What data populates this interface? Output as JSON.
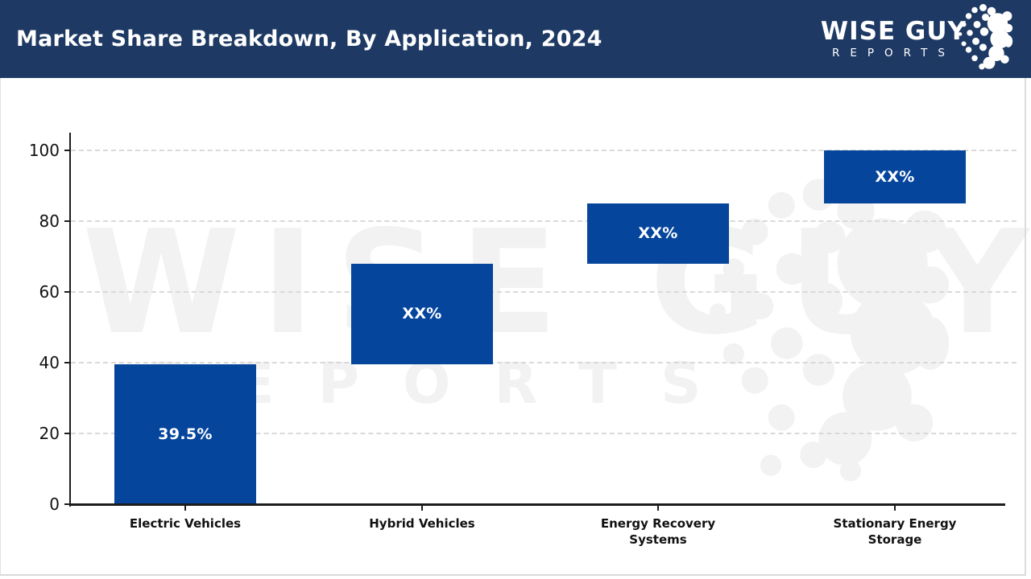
{
  "header": {
    "title": "Market Share Breakdown, By Application, 2024",
    "logo": {
      "line1": "WISE GUY",
      "line2": "REPORTS"
    }
  },
  "watermark": {
    "line1": "WISE GUY",
    "line2": "REPORTS"
  },
  "chart_data": {
    "type": "bar",
    "subtype": "waterfall",
    "title": "Market Share Breakdown, By Application, 2024",
    "xlabel": "",
    "ylabel": "",
    "ylim": [
      0,
      100
    ],
    "yticks": [
      0,
      20,
      40,
      60,
      80,
      100
    ],
    "grid": "horizontal-dashed",
    "legend": "none",
    "bar_color": "#05459C",
    "bar_label_color": "#FFFFFF",
    "categories": [
      "Electric Vehicles",
      "Hybrid Vehicles",
      "Energy Recovery Systems",
      "Stationary Energy Storage"
    ],
    "segments": [
      {
        "category": "Electric Vehicles",
        "start": 0,
        "end": 39.5,
        "label": "39.5%"
      },
      {
        "category": "Hybrid Vehicles",
        "start": 39.5,
        "end": 68,
        "label": "XX%"
      },
      {
        "category": "Energy Recovery Systems",
        "start": 68,
        "end": 85,
        "label": "XX%"
      },
      {
        "category": "Stationary Energy Storage",
        "start": 85,
        "end": 100,
        "label": "XX%"
      }
    ]
  }
}
